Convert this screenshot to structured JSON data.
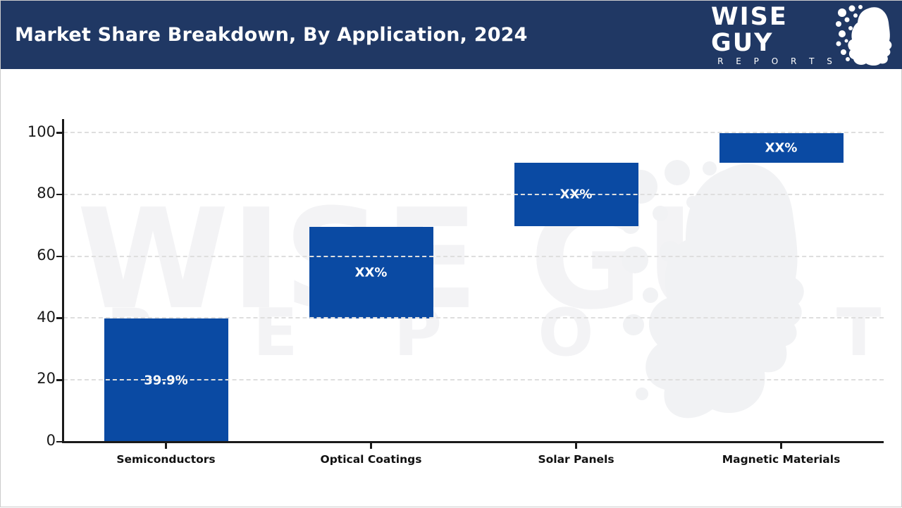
{
  "header": {
    "title": "Market Share Breakdown, By Application, 2024",
    "bg_color": "#203864",
    "logo": {
      "line1": "WISE GUY",
      "line2": "R E P O R T S",
      "head_icon": "dotted-head-profile"
    }
  },
  "watermark": {
    "line1": "WISE GU",
    "line2": "R E P O R T S",
    "head_icon": "dotted-head-profile"
  },
  "chart_data": {
    "type": "bar",
    "subtype": "waterfall",
    "title": "",
    "xlabel": "",
    "ylabel": "",
    "categories": [
      "Semiconductors",
      "Optical Coatings",
      "Solar Panels",
      "Magnetic Materials"
    ],
    "segments": [
      {
        "category": "Semiconductors",
        "start": 0,
        "end": 39.9,
        "label": "39.9%"
      },
      {
        "category": "Optical Coatings",
        "start": 39.9,
        "end": 69.5,
        "label": "XX%"
      },
      {
        "category": "Solar Panels",
        "start": 69.7,
        "end": 90.2,
        "label": "XX%"
      },
      {
        "category": "Magnetic Materials",
        "start": 90.4,
        "end": 100,
        "label": "XX%"
      }
    ],
    "y_ticks": [
      0,
      20,
      40,
      60,
      80,
      100
    ],
    "ylim": [
      0,
      104.5
    ],
    "bar_color": "#0a4aa3",
    "bar_label_color": "#ffffff",
    "axis_color": "#1a1a1a",
    "grid": "dashed-horizontal",
    "grid_color": "#dedede",
    "legend": "none"
  }
}
